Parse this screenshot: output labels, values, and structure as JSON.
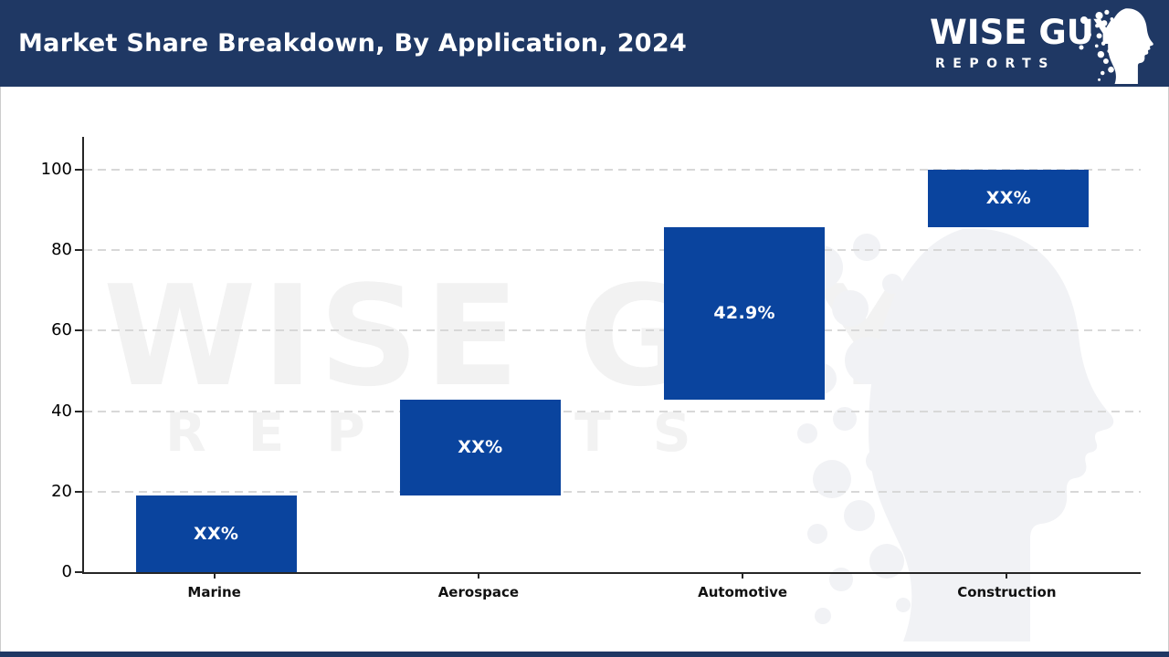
{
  "header": {
    "title": "Market Share Breakdown, By Application, 2024",
    "logo": {
      "line1": "WISE GUY",
      "line2": "R E P O R T S"
    }
  },
  "watermark": {
    "line1": "WISE GUY",
    "line2": "REPORTS"
  },
  "colors": {
    "header_bg": "#1f3864",
    "bar": "#0a449e",
    "grid": "#d8d8d8",
    "axis": "#262626",
    "bar_label": "#ffffff",
    "tick_label": "#000000",
    "category_label": "#111111",
    "watermark": "#f2f2f2",
    "footer_bar": "#1f3864"
  },
  "chart_data": {
    "type": "bar",
    "subtype": "waterfall",
    "title": "Market Share Breakdown, By Application, 2024",
    "unit": "percent",
    "categories": [
      "Marine",
      "Aerospace",
      "Automotive",
      "Construction"
    ],
    "segments": [
      {
        "category": "Marine",
        "start": 0,
        "end": 19.0,
        "value_label": "XX%"
      },
      {
        "category": "Aerospace",
        "start": 19.0,
        "end": 42.9,
        "value_label": "XX%"
      },
      {
        "category": "Automotive",
        "start": 42.9,
        "end": 85.8,
        "value_label": "42.9%"
      },
      {
        "category": "Construction",
        "start": 85.8,
        "end": 100,
        "value_label": "XX%"
      }
    ],
    "yticks": [
      0,
      20,
      40,
      60,
      80,
      100
    ],
    "ylim": [
      0,
      100
    ],
    "grid": "horizontal-dashed",
    "legend": "none",
    "xlabel": "",
    "ylabel": ""
  }
}
